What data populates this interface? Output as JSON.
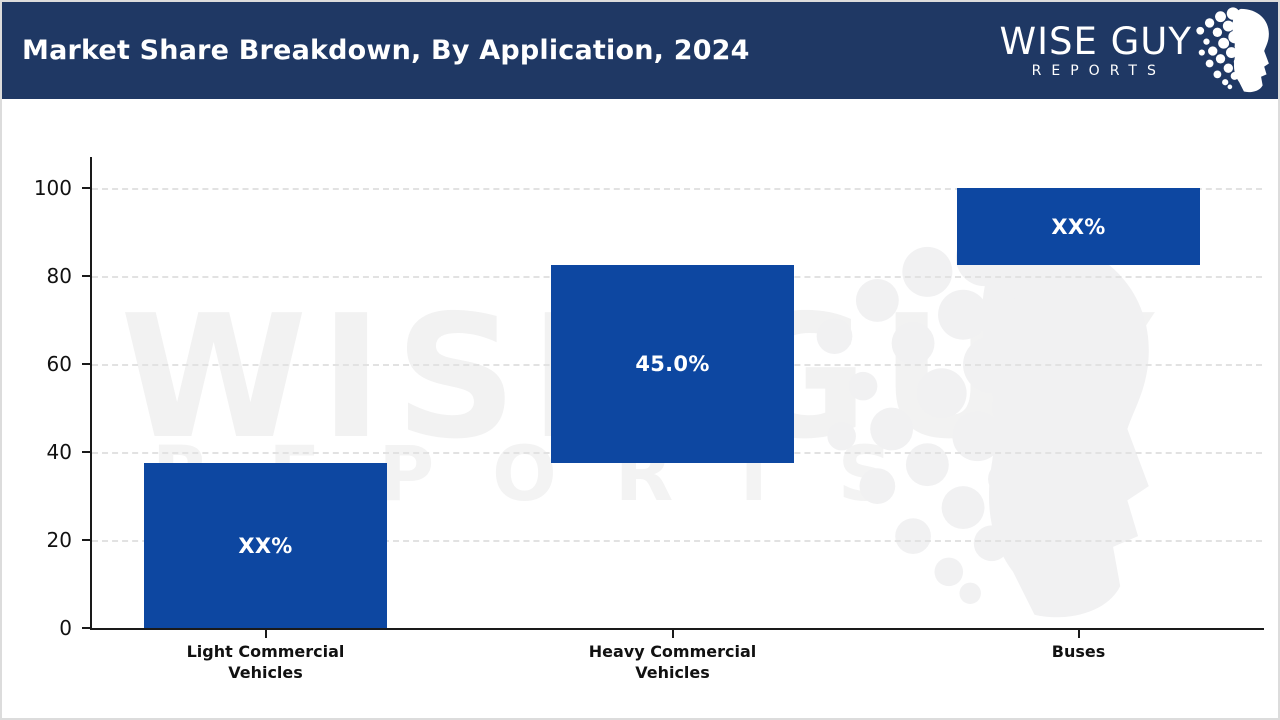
{
  "header": {
    "title": "Market Share Breakdown, By Application, 2024",
    "bg_color": "#1f3864",
    "logo": {
      "line1": "WISE GUY",
      "line2": "REPORTS"
    }
  },
  "watermark": {
    "line1": "WISE GUY",
    "line2": "REPORTS"
  },
  "chart_data": {
    "type": "bar",
    "subtype": "floating-stacked-percentage",
    "title": "Market Share Breakdown, By Application, 2024",
    "categories": [
      "Light Commercial\nVehicles",
      "Heavy Commercial\nVehicles",
      "Buses"
    ],
    "bars": [
      {
        "category": "Light Commercial Vehicles",
        "start": 0,
        "end": 37.5,
        "label": "XX%"
      },
      {
        "category": "Heavy Commercial Vehicles",
        "start": 37.5,
        "end": 82.5,
        "label": "45.0%"
      },
      {
        "category": "Buses",
        "start": 82.5,
        "end": 100,
        "label": "XX%"
      }
    ],
    "xlabel": "",
    "ylabel": "",
    "ylim": [
      0,
      107
    ],
    "yticks": [
      0,
      20,
      40,
      60,
      80,
      100
    ],
    "grid": "horizontal-dashed",
    "legend": "none",
    "bar_color": "#0d47a1",
    "bar_label_color": "#ffffff",
    "axis_color": "#1a1a1a",
    "gridline_color": "#e2e2e2"
  }
}
